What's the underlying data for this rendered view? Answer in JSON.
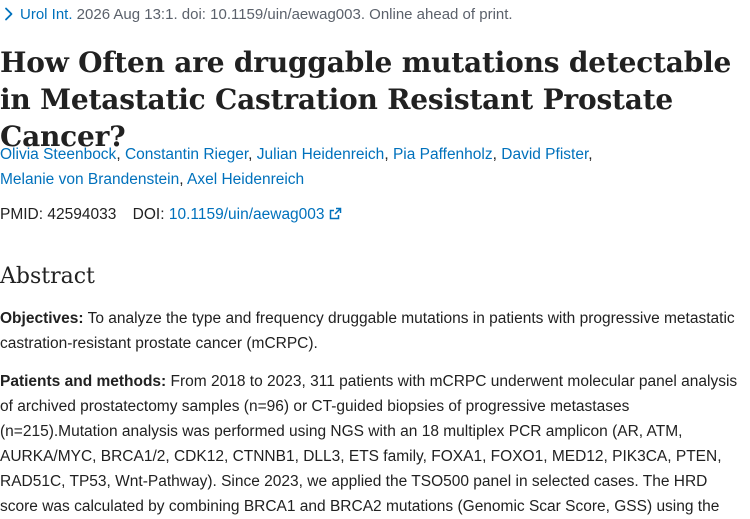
{
  "citation": {
    "journal": "Urol Int.",
    "details": " 2026 Aug 13:1. doi: 10.1159/uin/aewag003. Online ahead of print."
  },
  "article": {
    "title": "How Often are druggable mutations detectable in Metastatic Castration Resistant Prostate Cancer?"
  },
  "authors": [
    "Olivia Steenbock",
    "Constantin Rieger",
    "Julian Heidenreich",
    "Pia Paffenholz",
    "David Pfister",
    "Melanie von Brandenstein",
    "Axel Heidenreich"
  ],
  "identifiers": {
    "pmid_label": "PMID: 42594033",
    "doi_label": "DOI:",
    "doi_value": "10.1159/uin/aewag003"
  },
  "abstract": {
    "heading": "Abstract",
    "objectives_label": "Objectives:",
    "objectives_text": " To analyze the type and frequency druggable mutations in patients with progressive metastatic castration-resistant prostate cancer (mCRPC).",
    "methods_label": "Patients and methods:",
    "methods_text": " From 2018 to 2023, 311 patients with mCRPC underwent molecular panel analysis of archived prostatectomy samples (n=96) or CT-guided biopsies of progressive metastases (n=215).Mutation analysis was performed using NGS with an 18 multiplex PCR amplicon (AR, ATM, AURKA/MYC, BRCA1/2, CDK12, CTNNB1, DLL3, ETS family, FOXA1, FOXO1, MED12, PIK3CA, PTEN, RAD51C, TP53, Wnt-Pathway). Since 2023, we applied the TSO500 panel in selected cases. The HRD score was calculated by combining BRCA1 and BRCA2 mutations (Genomic Scar Score, GSS) using the"
  },
  "colors": {
    "link": "#0071bc",
    "text": "#212121",
    "muted": "#5b616b"
  },
  "icons": {
    "citation_toggle": "chevron-right-icon",
    "doi_external": "external-link-icon"
  }
}
